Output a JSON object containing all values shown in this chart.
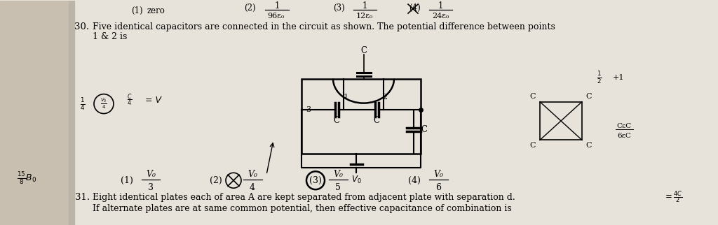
{
  "bg_left": "#c8bfb0",
  "bg_page": "#e8e3da",
  "figsize": [
    10.24,
    3.22
  ],
  "dpi": 100,
  "q30_text1": "Five identical capacitors are connected in the circuit as shown. The potential difference between points",
  "q30_text2": "1 & 2 is",
  "q31_text1": "Eight identical plates each of area ",
  "q31_text2": " are kept separated from adjacent plate with separation ",
  "q31_text3": ".",
  "q31_text4": "If alternate plates are at same common potential, then effective capacitance of combination is",
  "ans1_num": "V₀",
  "ans1_den": "3",
  "ans2_num": "V₀",
  "ans2_den": "4",
  "ans3_num": "V₀",
  "ans3_den": "5",
  "ans4_num": "V₀",
  "ans4_den": "6",
  "top_label2_num": "1",
  "top_label2_den": "96ε₀",
  "top_label3_num": "1",
  "top_label3_den": "12ε₀",
  "top_label4_num": "1",
  "top_label4_den": "24ε₀"
}
